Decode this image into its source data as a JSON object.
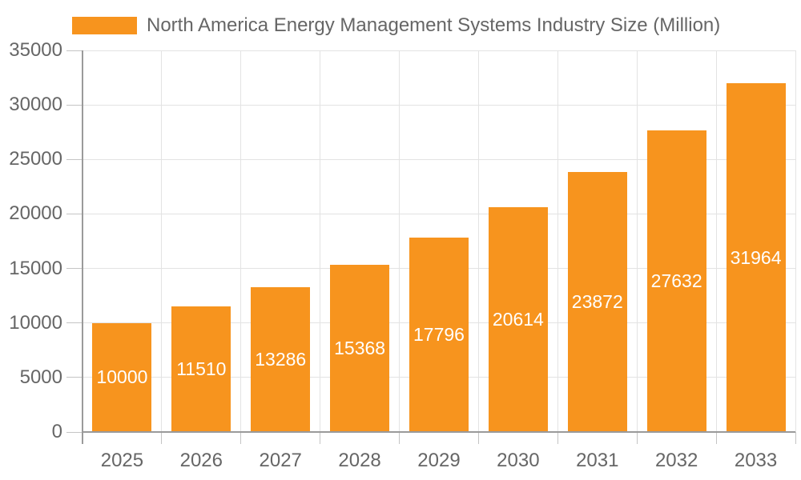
{
  "chart_data": {
    "type": "bar",
    "title": "North America Energy Management Systems Industry Size (Million)",
    "legend_entries": [
      "North America Energy Management Systems Industry Size (Million)"
    ],
    "legend_position": "top-left",
    "categories": [
      "2025",
      "2026",
      "2027",
      "2028",
      "2029",
      "2030",
      "2031",
      "2032",
      "2033"
    ],
    "values": [
      10000,
      11510,
      13286,
      15368,
      17796,
      20614,
      23872,
      27632,
      31964
    ],
    "xlabel": "",
    "ylabel": "",
    "ylim": [
      0,
      35000
    ],
    "ytick_step": 5000,
    "grid": true,
    "bar_color": "#F7941E",
    "value_label_color": "#FFFFFF",
    "axis_text_color": "#666666",
    "grid_color": "#E3E3E3",
    "tick_color": "#C4C4C4",
    "axis_line_color": "#9A9A9A",
    "background_color": "#FFFFFF"
  }
}
